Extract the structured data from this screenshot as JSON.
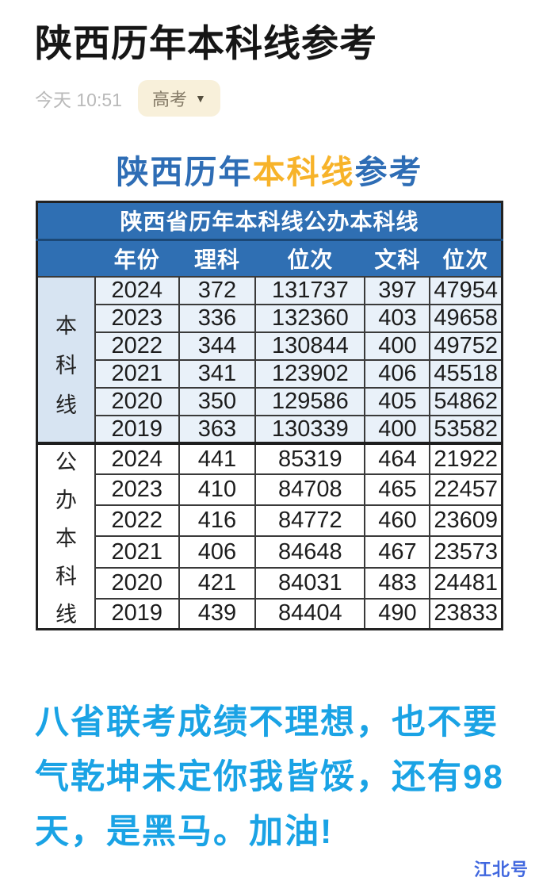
{
  "post": {
    "title": "陕西历年本科线参考",
    "timestamp": "今天 10:51",
    "tag": {
      "label": "高考",
      "caret": "▼"
    }
  },
  "image": {
    "title_parts": [
      {
        "text": "陕西历年",
        "color": "#2e6db5"
      },
      {
        "text": "本科线",
        "color": "#f7b32a"
      },
      {
        "text": "参考",
        "color": "#2e6db5"
      }
    ],
    "table": {
      "caption": "陕西省历年本科线公办本科线",
      "columns": [
        "年份",
        "理科",
        "位次",
        "文科",
        "位次"
      ],
      "sections": [
        {
          "label": "本科线",
          "label_align": "top",
          "band_bg": "#d7e4f2",
          "cell_bg": "#e9f1f9",
          "rows": [
            [
              "2024",
              "372",
              "131737",
              "397",
              "47954"
            ],
            [
              "2023",
              "336",
              "132360",
              "403",
              "49658"
            ],
            [
              "2022",
              "344",
              "130844",
              "400",
              "49752"
            ],
            [
              "2021",
              "341",
              "123902",
              "406",
              "45518"
            ],
            [
              "2020",
              "350",
              "129586",
              "405",
              "54862"
            ],
            [
              "2019",
              "363",
              "130339",
              "400",
              "53582"
            ]
          ]
        },
        {
          "label": "公办本科线",
          "label_align": "spread",
          "band_bg": "#ffffff",
          "cell_bg": "#ffffff",
          "rows": [
            [
              "2024",
              "441",
              "85319",
              "464",
              "21922"
            ],
            [
              "2023",
              "410",
              "84708",
              "465",
              "22457"
            ],
            [
              "2022",
              "416",
              "84772",
              "460",
              "23609"
            ],
            [
              "2021",
              "406",
              "84648",
              "467",
              "23573"
            ],
            [
              "2020",
              "421",
              "84031",
              "483",
              "24481"
            ],
            [
              "2019",
              "439",
              "84404",
              "490",
              "23833"
            ]
          ]
        }
      ]
    }
  },
  "comment": {
    "lines": [
      "八省联考成绩不理想，也不要",
      "气乾坤未定你我皆馁，还有98",
      "天，是黑马。加油!"
    ]
  },
  "watermark": "江北号",
  "colors": {
    "blue-header": "#2f6fb3",
    "comment-blue": "#1aa3e5",
    "watermark-blue": "#4067df",
    "tag-bg": "#f8f0da",
    "tag-text": "#847a66"
  }
}
